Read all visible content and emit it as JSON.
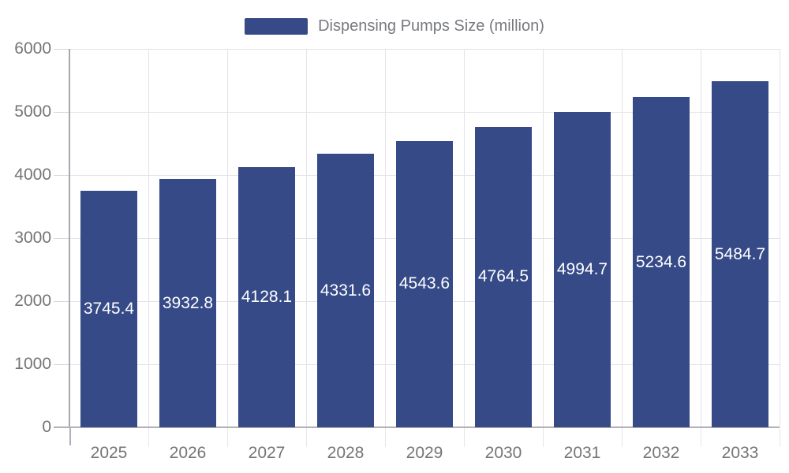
{
  "legend": {
    "label": "Dispensing Pumps Size (million)"
  },
  "chart_data": {
    "type": "bar",
    "title": "",
    "xlabel": "",
    "ylabel": "",
    "categories": [
      "2025",
      "2026",
      "2027",
      "2028",
      "2029",
      "2030",
      "2031",
      "2032",
      "2033"
    ],
    "series": [
      {
        "name": "Dispensing Pumps Size (million)",
        "values": [
          3745.4,
          3932.8,
          4128.1,
          4331.6,
          4543.6,
          4764.5,
          4994.7,
          5234.6,
          5484.7
        ],
        "value_labels": [
          "3745.4",
          "3932.8",
          "4128.1",
          "4331.6",
          "4543.6",
          "4764.5",
          "4994.7",
          "5234.6",
          "5484.7"
        ]
      }
    ],
    "ylim": [
      0,
      6000
    ],
    "yticks": [
      0,
      1000,
      2000,
      3000,
      4000,
      5000,
      6000
    ],
    "grid": true,
    "legend_position": "top-center",
    "bar_label_position": "inside-middle"
  },
  "colors": {
    "background": "#ffffff",
    "bar": "#364a88",
    "bar-label": "#ffffff",
    "grid": "#e3e3e9",
    "axis-x": "#b1b1b6",
    "axis-y": "#a8a8ae",
    "tick": "#d6d6dc",
    "tick-x": "#e7e7eb",
    "tick-x-first": "#abafc0",
    "tick-label": "#757578",
    "legend-text": "#77797e"
  }
}
